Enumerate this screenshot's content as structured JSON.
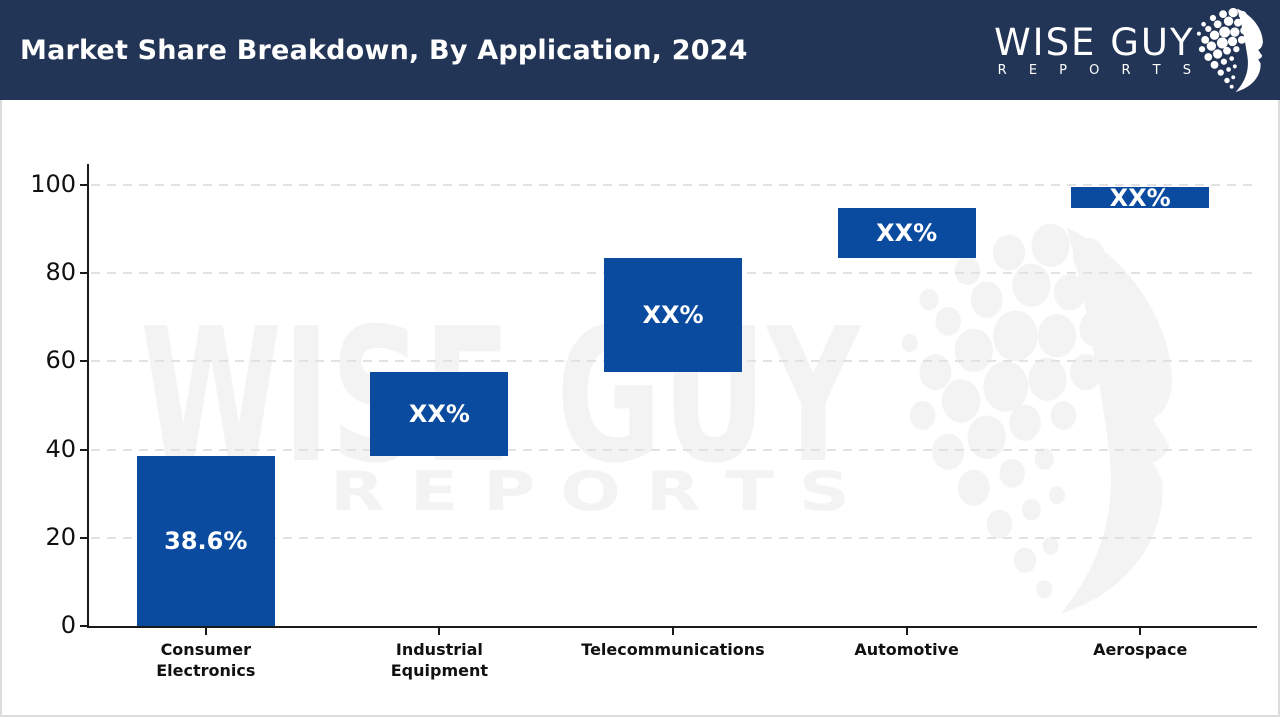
{
  "header": {
    "title": "Market Share Breakdown, By Application, 2024",
    "logo": {
      "line1": "WISE GUY",
      "line2": "R E P O R T S"
    }
  },
  "watermark": {
    "line1": "WISE GUY",
    "line2": "R E P O R T S"
  },
  "colors": {
    "header_bg": "#233556",
    "bar": "#0a4ba0",
    "grid": "#e2e2e2",
    "axis": "#1a1a1a",
    "panel_border": "#dcdcdc",
    "bar_label": "#ffffff"
  },
  "chart_data": {
    "type": "bar",
    "variant": "waterfall",
    "title": "Market Share Breakdown, By Application, 2024",
    "categories": [
      "Consumer\nElectronics",
      "Industrial\nEquipment",
      "Telecommunications",
      "Automotive",
      "Aerospace"
    ],
    "segments": [
      {
        "category": "Consumer Electronics",
        "start": 0,
        "end": 38.6,
        "label": "38.6%"
      },
      {
        "category": "Industrial Equipment",
        "start": 38.6,
        "end": 57.6,
        "label": "XX%"
      },
      {
        "category": "Telecommunications",
        "start": 57.6,
        "end": 83.4,
        "label": "XX%"
      },
      {
        "category": "Automotive",
        "start": 83.4,
        "end": 94.9,
        "label": "XX%"
      },
      {
        "category": "Aerospace",
        "start": 94.9,
        "end": 99.5,
        "label": "XX%"
      }
    ],
    "yticks": [
      0,
      20,
      40,
      60,
      80,
      100
    ],
    "ylim": [
      0,
      104.8
    ],
    "xlabel": "",
    "ylabel": "",
    "grid": "horizontal-dashed",
    "legend": "none",
    "bar_color": "#0a4ba0"
  }
}
